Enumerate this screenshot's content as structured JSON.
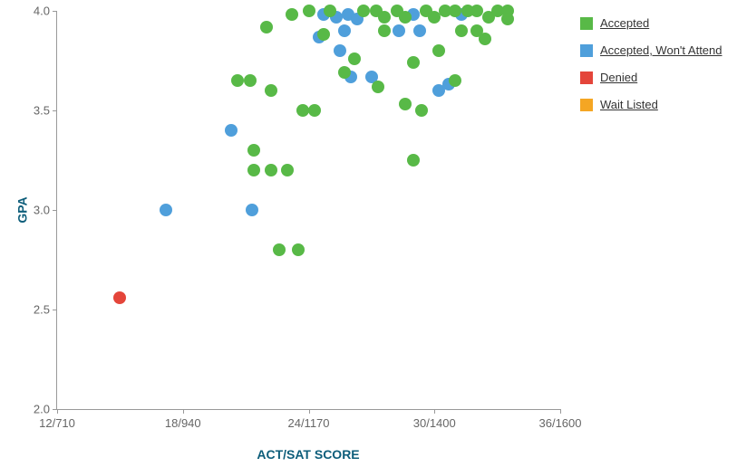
{
  "chart": {
    "type": "scatter",
    "background_color": "#ffffff",
    "axis_color": "#999999",
    "tick_label_color": "#666666",
    "tick_fontsize": 13,
    "axis_label_color": "#0d5d7a",
    "axis_label_fontsize": 14,
    "xlabel": "ACT/SAT SCORE",
    "ylabel": "GPA",
    "xlim": [
      12,
      36
    ],
    "ylim": [
      2.0,
      4.0
    ],
    "xticks": [
      {
        "v": 12,
        "label": "12/710"
      },
      {
        "v": 18,
        "label": "18/940"
      },
      {
        "v": 24,
        "label": "24/1170"
      },
      {
        "v": 30,
        "label": "30/1400"
      },
      {
        "v": 36,
        "label": "36/1600"
      }
    ],
    "yticks": [
      {
        "v": 2.0,
        "label": "2.0"
      },
      {
        "v": 2.5,
        "label": "2.5"
      },
      {
        "v": 3.0,
        "label": "3.0"
      },
      {
        "v": 3.5,
        "label": "3.5"
      },
      {
        "v": 4.0,
        "label": "4.0"
      }
    ],
    "marker_diameter": 14,
    "series": {
      "accepted": {
        "label": "Accepted",
        "color": "#58b947"
      },
      "wont_attend": {
        "label": "Accepted, Won't Attend",
        "color": "#4f9fdb"
      },
      "denied": {
        "label": "Denied",
        "color": "#e4453a"
      },
      "waitlisted": {
        "label": "Wait Listed",
        "color": "#f5a623"
      }
    },
    "legend": {
      "order": [
        "accepted",
        "wont_attend",
        "denied",
        "waitlisted"
      ],
      "text_color": "#333333",
      "fontsize": 13
    },
    "points": [
      {
        "x": 15.0,
        "y": 2.56,
        "s": "denied"
      },
      {
        "x": 17.2,
        "y": 3.0,
        "s": "wont_attend"
      },
      {
        "x": 21.3,
        "y": 3.0,
        "s": "wont_attend"
      },
      {
        "x": 20.3,
        "y": 3.4,
        "s": "wont_attend"
      },
      {
        "x": 26.0,
        "y": 3.67,
        "s": "wont_attend"
      },
      {
        "x": 27.0,
        "y": 3.67,
        "s": "wont_attend"
      },
      {
        "x": 25.5,
        "y": 3.8,
        "s": "wont_attend"
      },
      {
        "x": 24.5,
        "y": 3.87,
        "s": "wont_attend"
      },
      {
        "x": 25.7,
        "y": 3.9,
        "s": "wont_attend"
      },
      {
        "x": 28.3,
        "y": 3.9,
        "s": "wont_attend"
      },
      {
        "x": 29.3,
        "y": 3.9,
        "s": "wont_attend"
      },
      {
        "x": 24.7,
        "y": 3.98,
        "s": "wont_attend"
      },
      {
        "x": 25.3,
        "y": 3.97,
        "s": "wont_attend"
      },
      {
        "x": 25.9,
        "y": 3.98,
        "s": "wont_attend"
      },
      {
        "x": 26.3,
        "y": 3.96,
        "s": "wont_attend"
      },
      {
        "x": 29.0,
        "y": 3.98,
        "s": "wont_attend"
      },
      {
        "x": 31.3,
        "y": 3.98,
        "s": "wont_attend"
      },
      {
        "x": 30.2,
        "y": 3.6,
        "s": "wont_attend"
      },
      {
        "x": 30.7,
        "y": 3.63,
        "s": "wont_attend"
      },
      {
        "x": 22.6,
        "y": 2.8,
        "s": "accepted"
      },
      {
        "x": 23.5,
        "y": 2.8,
        "s": "accepted"
      },
      {
        "x": 21.4,
        "y": 3.2,
        "s": "accepted"
      },
      {
        "x": 22.2,
        "y": 3.2,
        "s": "accepted"
      },
      {
        "x": 23.0,
        "y": 3.2,
        "s": "accepted"
      },
      {
        "x": 21.4,
        "y": 3.3,
        "s": "accepted"
      },
      {
        "x": 29.0,
        "y": 3.25,
        "s": "accepted"
      },
      {
        "x": 23.7,
        "y": 3.5,
        "s": "accepted"
      },
      {
        "x": 24.3,
        "y": 3.5,
        "s": "accepted"
      },
      {
        "x": 28.6,
        "y": 3.53,
        "s": "accepted"
      },
      {
        "x": 29.4,
        "y": 3.5,
        "s": "accepted"
      },
      {
        "x": 22.2,
        "y": 3.6,
        "s": "accepted"
      },
      {
        "x": 27.3,
        "y": 3.62,
        "s": "accepted"
      },
      {
        "x": 20.6,
        "y": 3.65,
        "s": "accepted"
      },
      {
        "x": 21.2,
        "y": 3.65,
        "s": "accepted"
      },
      {
        "x": 31.0,
        "y": 3.65,
        "s": "accepted"
      },
      {
        "x": 25.7,
        "y": 3.69,
        "s": "accepted"
      },
      {
        "x": 29.0,
        "y": 3.74,
        "s": "accepted"
      },
      {
        "x": 26.2,
        "y": 3.76,
        "s": "accepted"
      },
      {
        "x": 30.2,
        "y": 3.8,
        "s": "accepted"
      },
      {
        "x": 32.4,
        "y": 3.86,
        "s": "accepted"
      },
      {
        "x": 24.7,
        "y": 3.88,
        "s": "accepted"
      },
      {
        "x": 22.0,
        "y": 3.92,
        "s": "accepted"
      },
      {
        "x": 27.6,
        "y": 3.9,
        "s": "accepted"
      },
      {
        "x": 31.3,
        "y": 3.9,
        "s": "accepted"
      },
      {
        "x": 32.0,
        "y": 3.9,
        "s": "accepted"
      },
      {
        "x": 23.2,
        "y": 3.98,
        "s": "accepted"
      },
      {
        "x": 24.0,
        "y": 4.0,
        "s": "accepted"
      },
      {
        "x": 25.0,
        "y": 4.0,
        "s": "accepted"
      },
      {
        "x": 26.6,
        "y": 4.0,
        "s": "accepted"
      },
      {
        "x": 27.2,
        "y": 4.0,
        "s": "accepted"
      },
      {
        "x": 27.6,
        "y": 3.97,
        "s": "accepted"
      },
      {
        "x": 28.2,
        "y": 4.0,
        "s": "accepted"
      },
      {
        "x": 28.6,
        "y": 3.97,
        "s": "accepted"
      },
      {
        "x": 29.6,
        "y": 4.0,
        "s": "accepted"
      },
      {
        "x": 30.0,
        "y": 3.97,
        "s": "accepted"
      },
      {
        "x": 30.5,
        "y": 4.0,
        "s": "accepted"
      },
      {
        "x": 31.0,
        "y": 4.0,
        "s": "accepted"
      },
      {
        "x": 31.6,
        "y": 4.0,
        "s": "accepted"
      },
      {
        "x": 32.0,
        "y": 4.0,
        "s": "accepted"
      },
      {
        "x": 32.6,
        "y": 3.97,
        "s": "accepted"
      },
      {
        "x": 33.0,
        "y": 4.0,
        "s": "accepted"
      },
      {
        "x": 33.5,
        "y": 4.0,
        "s": "accepted"
      },
      {
        "x": 33.5,
        "y": 3.96,
        "s": "accepted"
      }
    ]
  }
}
